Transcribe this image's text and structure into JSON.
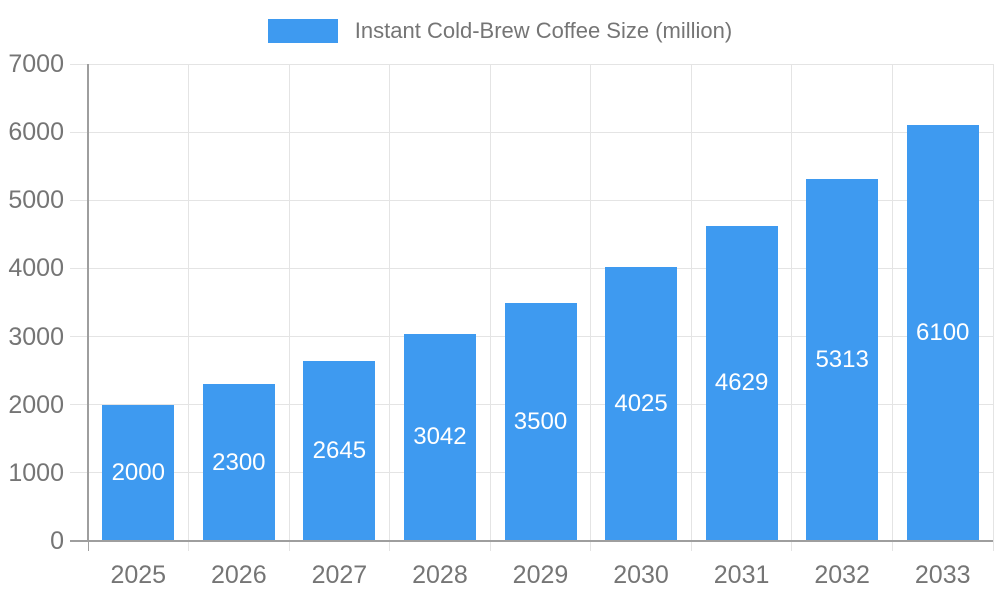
{
  "chart_data": {
    "type": "bar",
    "title": "Instant Cold-Brew Coffee Size (million)",
    "xlabel": "",
    "ylabel": "",
    "categories": [
      "2025",
      "2026",
      "2027",
      "2028",
      "2029",
      "2030",
      "2031",
      "2032",
      "2033"
    ],
    "values": [
      2000,
      2300,
      2645,
      3042,
      3500,
      4025,
      4629,
      5313,
      6100
    ],
    "bar_value_labels": [
      "2000",
      "2300",
      "2645",
      "3042",
      "3500",
      "4025",
      "4629",
      "5313",
      "6100"
    ],
    "ylim": [
      0,
      7000
    ],
    "yticks": [
      0,
      1000,
      2000,
      3000,
      4000,
      5000,
      6000,
      7000
    ],
    "legend": {
      "position": "top-center",
      "entries": [
        "Instant Cold-Brew Coffee Size (million)"
      ]
    },
    "grid": true,
    "bar_labels_inside": true
  },
  "colors": {
    "bar": "#3E9AF0",
    "bar_label_text": "#ffffff",
    "axis_text": "#757575",
    "legend_text": "#757575",
    "gridline": "#e4e4e4",
    "axis_line": "#9e9e9e",
    "background": "#ffffff"
  }
}
